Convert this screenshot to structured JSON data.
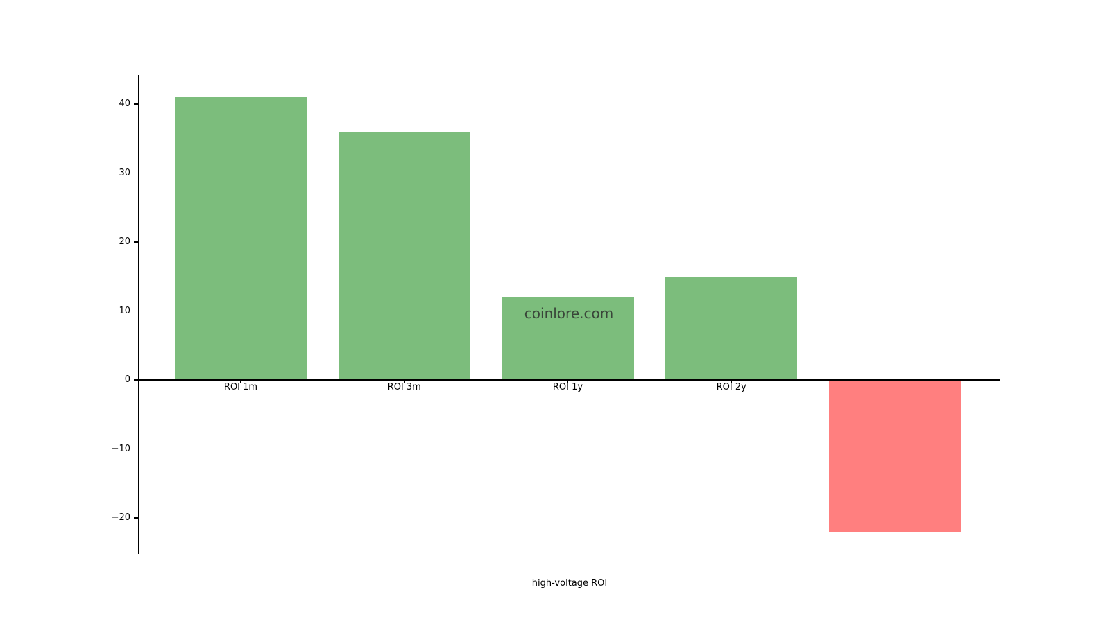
{
  "watermark": "coinlore.com",
  "chart_data": {
    "type": "bar",
    "title": "",
    "xlabel": "high-voltage ROI",
    "ylabel": "",
    "categories": [
      "ROI 1m",
      "ROI 3m",
      "ROI 1y",
      "ROI 2y",
      ""
    ],
    "values": [
      41,
      36,
      12,
      15,
      -22
    ],
    "yticks": [
      40,
      30,
      20,
      10,
      0,
      -10,
      -20
    ],
    "ytick_labels": [
      "40",
      "30",
      "20",
      "10",
      "0",
      "−10",
      "−20"
    ],
    "ylim": [
      -25.2,
      44.2
    ],
    "grid": false,
    "legend_position": "none",
    "colors": {
      "positive_bar": "#7cbd7c",
      "negative_bar": "#ff7f7f",
      "axis": "#000000",
      "tick_label": "#000000",
      "watermark": "#2b2b2b"
    }
  }
}
